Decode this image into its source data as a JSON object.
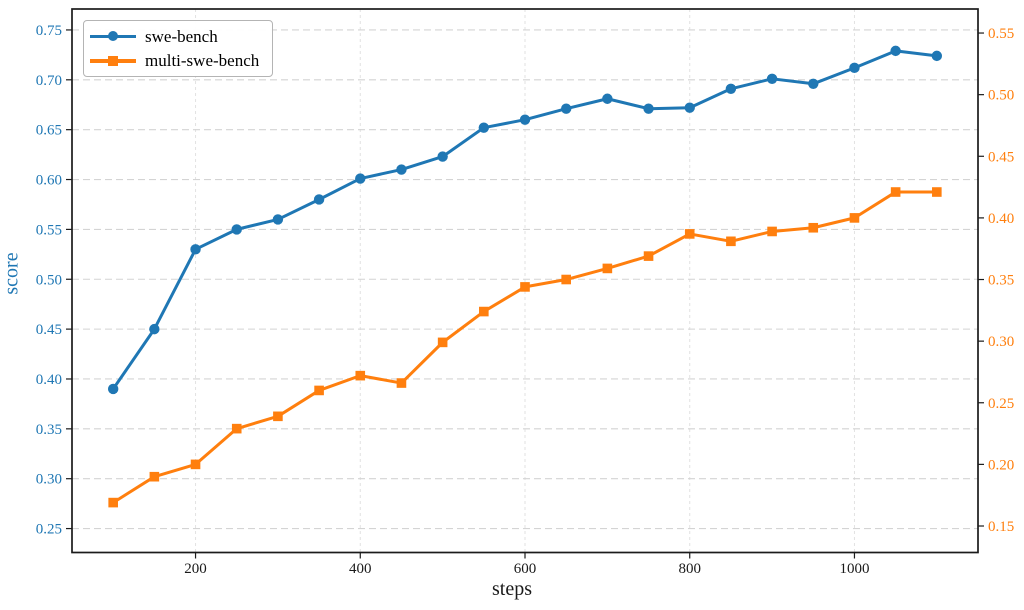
{
  "chart_data": {
    "type": "line",
    "title": "",
    "xlabel": "steps",
    "ylabel_left": "score",
    "ylabel_right": "",
    "x": [
      100,
      150,
      200,
      250,
      300,
      350,
      400,
      450,
      500,
      550,
      600,
      650,
      700,
      750,
      800,
      850,
      900,
      950,
      1000,
      1050,
      1100
    ],
    "series": [
      {
        "name": "swe-bench",
        "axis": "left",
        "color": "#1f77b4",
        "marker": "circle",
        "values": [
          0.39,
          0.45,
          0.53,
          0.55,
          0.56,
          0.58,
          0.601,
          0.61,
          0.623,
          0.652,
          0.66,
          0.671,
          0.681,
          0.671,
          0.672,
          0.691,
          0.701,
          0.696,
          0.712,
          0.729,
          0.724
        ]
      },
      {
        "name": "multi-swe-bench",
        "axis": "right",
        "color": "#ff7f0e",
        "marker": "square",
        "values": [
          0.169,
          0.19,
          0.2,
          0.229,
          0.239,
          0.26,
          0.272,
          0.266,
          0.299,
          0.324,
          0.344,
          0.35,
          0.359,
          0.369,
          0.387,
          0.381,
          0.389,
          0.392,
          0.4,
          0.421,
          0.421
        ]
      }
    ],
    "xlim": [
      50,
      1150
    ],
    "ylim_left": [
      0.226,
      0.771
    ],
    "ylim_right": [
      0.1285,
      0.5695
    ],
    "xticks": [
      {
        "v": 200,
        "label": "200"
      },
      {
        "v": 400,
        "label": "400"
      },
      {
        "v": 600,
        "label": "600"
      },
      {
        "v": 800,
        "label": "800"
      },
      {
        "v": 1000,
        "label": "1000"
      }
    ],
    "yticks_left": [
      {
        "v": 0.25,
        "label": "0.25"
      },
      {
        "v": 0.3,
        "label": "0.30"
      },
      {
        "v": 0.35,
        "label": "0.35"
      },
      {
        "v": 0.4,
        "label": "0.40"
      },
      {
        "v": 0.45,
        "label": "0.45"
      },
      {
        "v": 0.5,
        "label": "0.50"
      },
      {
        "v": 0.55,
        "label": "0.55"
      },
      {
        "v": 0.6,
        "label": "0.60"
      },
      {
        "v": 0.65,
        "label": "0.65"
      },
      {
        "v": 0.7,
        "label": "0.70"
      },
      {
        "v": 0.75,
        "label": "0.75"
      }
    ],
    "yticks_right": [
      {
        "v": 0.15,
        "label": "0.15"
      },
      {
        "v": 0.2,
        "label": "0.20"
      },
      {
        "v": 0.25,
        "label": "0.25"
      },
      {
        "v": 0.3,
        "label": "0.30"
      },
      {
        "v": 0.35,
        "label": "0.35"
      },
      {
        "v": 0.4,
        "label": "0.40"
      },
      {
        "v": 0.45,
        "label": "0.45"
      },
      {
        "v": 0.5,
        "label": "0.50"
      },
      {
        "v": 0.55,
        "label": "0.55"
      }
    ],
    "grid": true,
    "legend_position": "upper-left",
    "colors": {
      "left_axis_labels": "#1f77b4",
      "right_axis_labels": "#ff7f0e",
      "x_axis_labels": "#1a1a1a",
      "grid_h": "#d4d4d4",
      "grid_v": "#e2e2e2",
      "spine": "#1b1b1b"
    }
  }
}
